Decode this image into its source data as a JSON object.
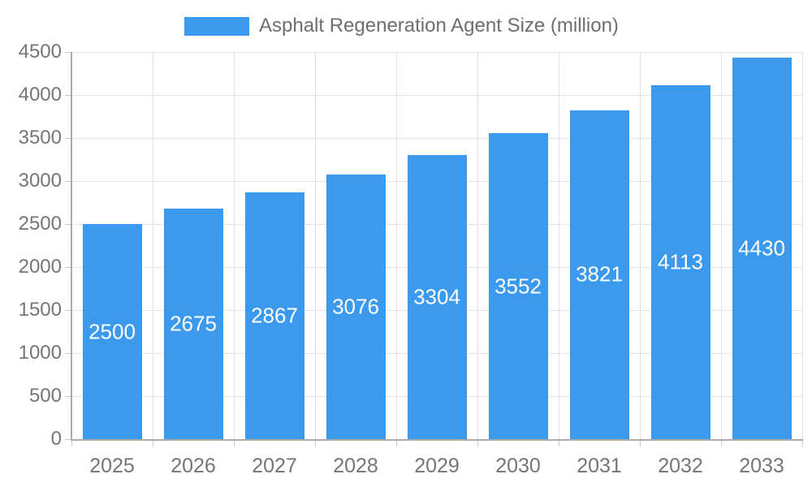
{
  "legend": {
    "label": "Asphalt Regeneration Agent Size (million)"
  },
  "chart_data": {
    "type": "bar",
    "title": "Asphalt Regeneration Agent Size (million)",
    "categories": [
      "2025",
      "2026",
      "2027",
      "2028",
      "2029",
      "2030",
      "2031",
      "2032",
      "2033"
    ],
    "values": [
      2500,
      2675,
      2867,
      3076,
      3304,
      3552,
      3821,
      4113,
      4430
    ],
    "xlabel": "",
    "ylabel": "",
    "ylim": [
      0,
      4500
    ],
    "y_ticks": [
      0,
      500,
      1000,
      1500,
      2000,
      2500,
      3000,
      3500,
      4000,
      4500
    ],
    "grid": true,
    "legend_position": "top",
    "bar_color": "#3B9AEE",
    "bar_label_color": "#ffffff"
  }
}
